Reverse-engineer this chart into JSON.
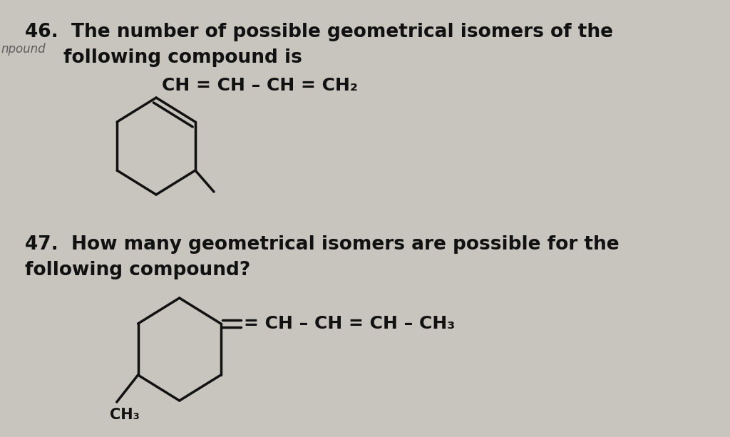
{
  "background_color": "#c8c4be",
  "text_color": "#111111",
  "q46_line1": "46.  The number of possible geometrical isomers of the",
  "q46_line2": "following compound is",
  "q47_line1": "47.  How many geometrical isomers are possible for the",
  "q47_line2": "following compound?",
  "mol1_chain": "CH = CH – CH = CH₂",
  "mol2_chain": "= CH – CH = CH – CH₃",
  "font_size_main": 19,
  "font_size_mol": 18
}
